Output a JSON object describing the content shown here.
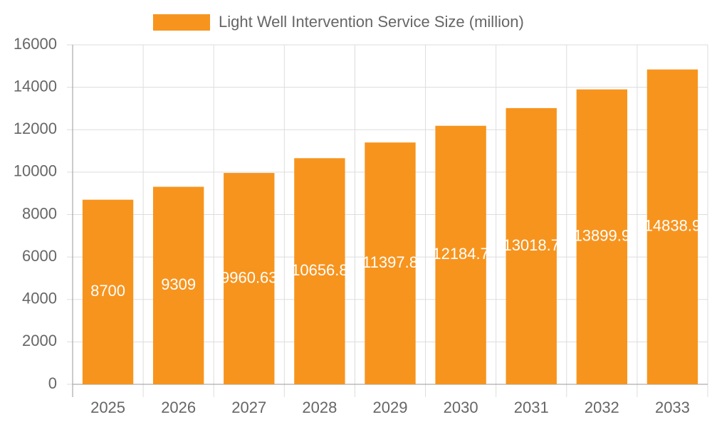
{
  "chart_data": {
    "type": "bar",
    "categories": [
      "2025",
      "2026",
      "2027",
      "2028",
      "2029",
      "2030",
      "2031",
      "2032",
      "2033"
    ],
    "series": [
      {
        "name": "Light Well Intervention Service Size (million)",
        "color": "#f7941e",
        "values": [
          8700,
          9309,
          9960.63,
          10656.8,
          11397.8,
          12184.7,
          13018.7,
          13899.9,
          14838.9
        ]
      }
    ],
    "ylim": [
      0,
      16000
    ],
    "yticks": [
      0,
      2000,
      4000,
      6000,
      8000,
      10000,
      12000,
      14000,
      16000
    ],
    "grid": true,
    "legend": "top"
  }
}
